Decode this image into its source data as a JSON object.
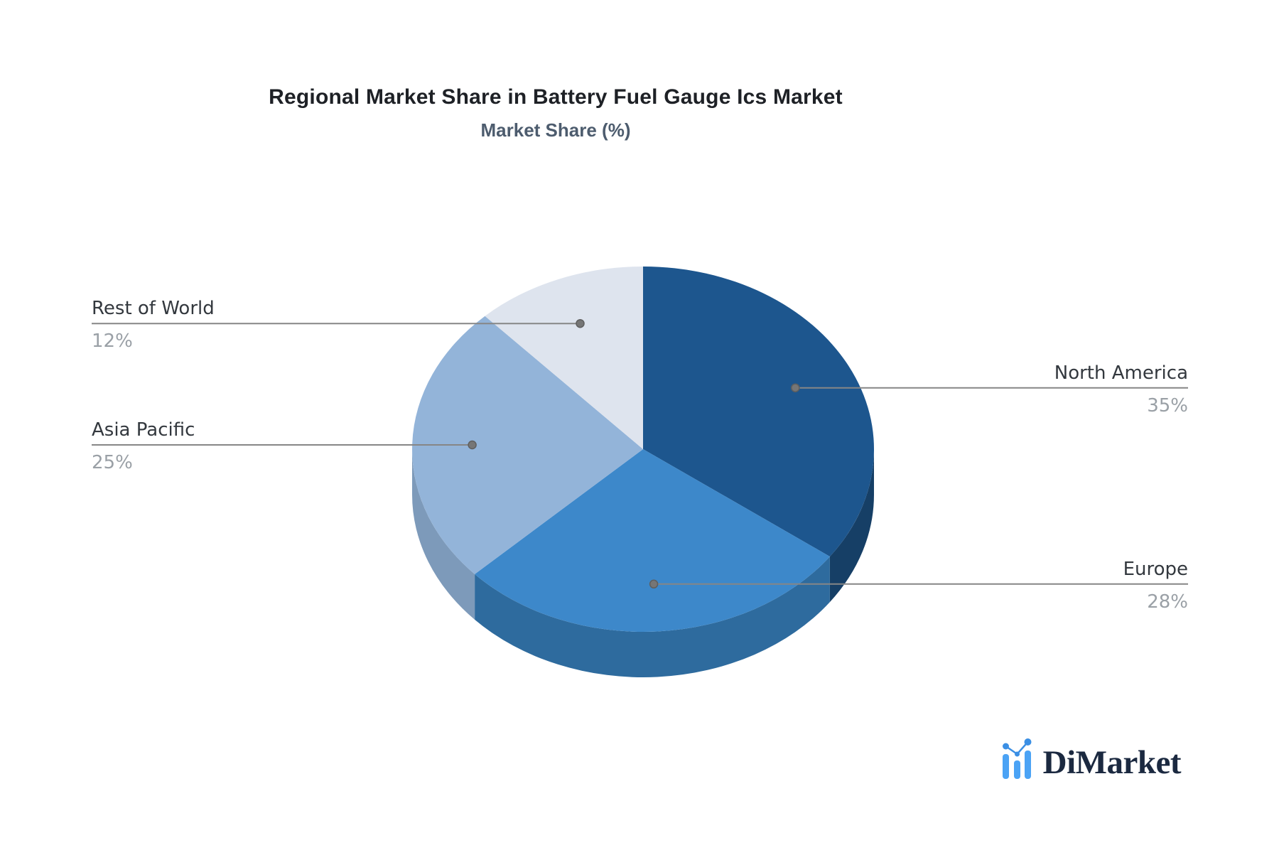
{
  "title": "Regional Market Share in Battery Fuel Gauge Ics Market",
  "subtitle": "Market Share (%)",
  "logo": {
    "text": "DiMarket",
    "icon": "bar-line-chart-icon",
    "bar_color": "#4ba3f5",
    "dot_color": "#3b8fe4",
    "text_color": "#1b2940"
  },
  "style": {
    "leader_line_color": "#868686",
    "leader_dot_color": "#767676",
    "label_name_color": "#33383e",
    "label_pct_color": "#9aa0a6"
  },
  "chart_data": {
    "type": "pie",
    "effect": "3d",
    "title": "Regional Market Share in Battery Fuel Gauge Ics Market",
    "subtitle": "Market Share (%)",
    "unit": "%",
    "start_angle": "12 o'clock, clockwise",
    "legend_position": "callout-labels",
    "slices": [
      {
        "label": "North America",
        "value": 35,
        "display": "35%",
        "color": "#1d568e",
        "side_color": "#163f66",
        "label_side": "right"
      },
      {
        "label": "Europe",
        "value": 28,
        "display": "28%",
        "color": "#3d88ca",
        "side_color": "#2e6b9e",
        "label_side": "right"
      },
      {
        "label": "Asia Pacific",
        "value": 25,
        "display": "25%",
        "color": "#93b4d9",
        "side_color": "#7d9aba",
        "label_side": "left"
      },
      {
        "label": "Rest of World",
        "value": 12,
        "display": "12%",
        "color": "#dee4ee",
        "side_color": "#c2cad8",
        "label_side": "left"
      }
    ]
  }
}
